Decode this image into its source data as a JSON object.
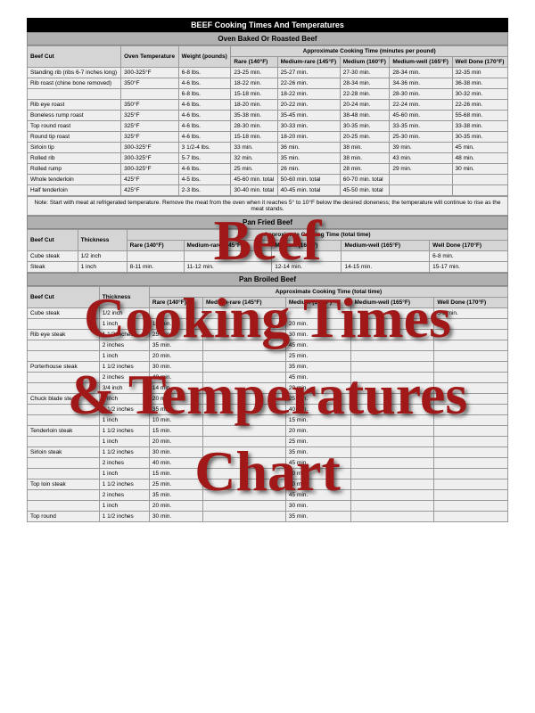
{
  "title": "BEEF Cooking Times And Temperatures",
  "overlay": {
    "line1": "Beef",
    "line2": "Cooking Times",
    "line3": "& Temperatures",
    "line4": "Chart",
    "color": "#a01818",
    "fontsize": 64
  },
  "section1": {
    "header": "Oven Baked Or Roasted Beef",
    "cols": {
      "cut": "Beef Cut",
      "temp": "Oven Temperature",
      "weight": "Weight (pounds)",
      "span": "Approximate Cooking Time (minutes per pound)",
      "rare": "Rare (140°F)",
      "medrare": "Medium-rare (145°F)",
      "med": "Medium (160°F)",
      "medwell": "Medium-well (165°F)",
      "well": "Well Done (170°F)"
    },
    "rows": [
      {
        "cut": "Standing rib (ribs 6-7 inches long)",
        "temp": "300-325°F",
        "w": "6-8 lbs.",
        "r": "23-25 min.",
        "mr": "25-27 min.",
        "m": "27-30 min.",
        "mw": "28-34 min.",
        "wd": "32-35 min"
      },
      {
        "cut": "Rib roast (chine bone removed)",
        "temp": "350°F",
        "w": "4-6 lbs.",
        "r": "18-22 min.",
        "mr": "22-26 min.",
        "m": "28-34 min.",
        "mw": "34-36 min.",
        "wd": "36-38 min."
      },
      {
        "cut": "",
        "temp": "",
        "w": "6-8 lbs.",
        "r": "15-18 min.",
        "mr": "18-22 min.",
        "m": "22-28 min.",
        "mw": "28-30 min.",
        "wd": "30-32 min."
      },
      {
        "cut": "Rib eye roast",
        "temp": "350°F",
        "w": "4-6 lbs.",
        "r": "18-20 min.",
        "mr": "20-22 min.",
        "m": "20-24 min.",
        "mw": "22-24 min.",
        "wd": "22-26 min."
      },
      {
        "cut": "Boneless rump roast",
        "temp": "325°F",
        "w": "4-6 lbs.",
        "r": "35-38 min.",
        "mr": "35-45 min.",
        "m": "38-48 min.",
        "mw": "45-60 min.",
        "wd": "55-68 min."
      },
      {
        "cut": "Top round roast",
        "temp": "325°F",
        "w": "4-6 lbs.",
        "r": "28-30 min.",
        "mr": "30-33 min.",
        "m": "30-35 min.",
        "mw": "33-35 min.",
        "wd": "33-38 min."
      },
      {
        "cut": "Round tip roast",
        "temp": "325°F",
        "w": "4-6 lbs.",
        "r": "15-18 min.",
        "mr": "18-20 min.",
        "m": "20-25 min.",
        "mw": "25-30 min.",
        "wd": "30-35 min."
      },
      {
        "cut": "Sirloin tip",
        "temp": "300-325°F",
        "w": "3 1/2-4 lbs.",
        "r": "33 min.",
        "mr": "36 min.",
        "m": "38 min.",
        "mw": "39 min.",
        "wd": "45 min."
      },
      {
        "cut": "Rolled rib",
        "temp": "300-325°F",
        "w": "5-7 lbs.",
        "r": "32 min.",
        "mr": "35 min.",
        "m": "38 min.",
        "mw": "43 min.",
        "wd": "48 min."
      },
      {
        "cut": "Rolled rump",
        "temp": "300-325°F",
        "w": "4-6 lbs.",
        "r": "25 min.",
        "mr": "26 min.",
        "m": "28 min.",
        "mw": "29 min.",
        "wd": "30 min."
      },
      {
        "cut": "Whole tenderloin",
        "temp": "425°F",
        "w": "4-5 lbs.",
        "r": "45-60 min. total",
        "mr": "50-60 min. total",
        "m": "60-70 min. total",
        "mw": "",
        "wd": ""
      },
      {
        "cut": "Half tenderloin",
        "temp": "425°F",
        "w": "2-3 lbs.",
        "r": "30-40 min. total",
        "mr": "40-45 min. total",
        "m": "45-50 min. total",
        "mw": "",
        "wd": ""
      }
    ],
    "note": "Note: Start with meat at refrigerated temperature. Remove the meat from the oven when it reaches 5° to 10°F below the desired doneness; the temperature will continue to rise as the meat stands."
  },
  "section2": {
    "header": "Pan Fried Beef",
    "cols": {
      "cut": "Beef Cut",
      "thick": "Thickness",
      "span": "Approximate Cooking Time (total time)",
      "rare": "Rare (140°F)",
      "medrare": "Medium-rare (145°F)",
      "med": "Medium (160°F)",
      "medwell": "Medium-well (165°F)",
      "well": "Well Done (170°F)"
    },
    "rows": [
      {
        "cut": "Cube steak",
        "th": "1/2 inch",
        "r": "",
        "mr": "",
        "m": "",
        "mw": "",
        "wd": "6-8 min."
      },
      {
        "cut": "Steak",
        "th": "1 inch",
        "r": "8-11 min.",
        "mr": "11-12 min.",
        "m": "12-14 min.",
        "mw": "14-15 min.",
        "wd": "15-17 min."
      }
    ]
  },
  "section3": {
    "header": "Pan Broiled Beef",
    "cols": {
      "cut": "Beef Cut",
      "thick": "Thickness",
      "span": "Approximate Cooking Time (total time)",
      "rare": "Rare (140°F)",
      "medrare": "Medium-rare (145°F)",
      "med": "Medium (160°F)",
      "medwell": "Medium-well (165°F)",
      "well": "Well Done (170°F)"
    },
    "rows": [
      {
        "cut": "Cube steak",
        "th": "1/2 inch",
        "r": "",
        "mr": "",
        "m": "",
        "mw": "",
        "wd": "5-8 min."
      },
      {
        "cut": "",
        "th": "1 inch",
        "r": "15 min.",
        "mr": "",
        "m": "20 min.",
        "mw": "",
        "wd": ""
      },
      {
        "cut": "Rib eye steak",
        "th": "1 1/2 inches",
        "r": "25 min.",
        "mr": "",
        "m": "30 min.",
        "mw": "",
        "wd": ""
      },
      {
        "cut": "",
        "th": "2 inches",
        "r": "35 min.",
        "mr": "",
        "m": "45 min.",
        "mw": "",
        "wd": ""
      },
      {
        "cut": "",
        "th": "1 inch",
        "r": "20 min.",
        "mr": "",
        "m": "25 min.",
        "mw": "",
        "wd": ""
      },
      {
        "cut": "Porterhouse steak",
        "th": "1 1/2 inches",
        "r": "30 min.",
        "mr": "",
        "m": "35 min.",
        "mw": "",
        "wd": ""
      },
      {
        "cut": "",
        "th": "2 inches",
        "r": "40 min.",
        "mr": "",
        "m": "45 min.",
        "mw": "",
        "wd": ""
      },
      {
        "cut": "",
        "th": "3/4 inch",
        "r": "14 min.",
        "mr": "",
        "m": "20 min.",
        "mw": "",
        "wd": ""
      },
      {
        "cut": "Chuck blade steak",
        "th": "1 inch",
        "r": "20 min.",
        "mr": "",
        "m": "25 min.",
        "mw": "",
        "wd": ""
      },
      {
        "cut": "",
        "th": "1 1/2 inches",
        "r": "35 min.",
        "mr": "",
        "m": "40 min.",
        "mw": "",
        "wd": ""
      },
      {
        "cut": "",
        "th": "1 inch",
        "r": "10 min.",
        "mr": "",
        "m": "15 min.",
        "mw": "",
        "wd": ""
      },
      {
        "cut": "Tenderloin steak",
        "th": "1 1/2 inches",
        "r": "15 min.",
        "mr": "",
        "m": "20 min.",
        "mw": "",
        "wd": ""
      },
      {
        "cut": "",
        "th": "1 inch",
        "r": "20 min.",
        "mr": "",
        "m": "25 min.",
        "mw": "",
        "wd": ""
      },
      {
        "cut": "Sirloin steak",
        "th": "1 1/2 inches",
        "r": "30 min.",
        "mr": "",
        "m": "35 min.",
        "mw": "",
        "wd": ""
      },
      {
        "cut": "",
        "th": "2 inches",
        "r": "40 min.",
        "mr": "",
        "m": "45 min.",
        "mw": "",
        "wd": ""
      },
      {
        "cut": "",
        "th": "1 inch",
        "r": "15 min.",
        "mr": "",
        "m": "20 min.",
        "mw": "",
        "wd": ""
      },
      {
        "cut": "Top loin steak",
        "th": "1 1/2 inches",
        "r": "25 min.",
        "mr": "",
        "m": "30 min.",
        "mw": "",
        "wd": ""
      },
      {
        "cut": "",
        "th": "2 inches",
        "r": "35 min.",
        "mr": "",
        "m": "45 min.",
        "mw": "",
        "wd": ""
      },
      {
        "cut": "",
        "th": "1 inch",
        "r": "20 min.",
        "mr": "",
        "m": "30 min.",
        "mw": "",
        "wd": ""
      },
      {
        "cut": "Top round",
        "th": "1 1/2 inches",
        "r": "30 min.",
        "mr": "",
        "m": "35 min.",
        "mw": "",
        "wd": ""
      }
    ]
  }
}
